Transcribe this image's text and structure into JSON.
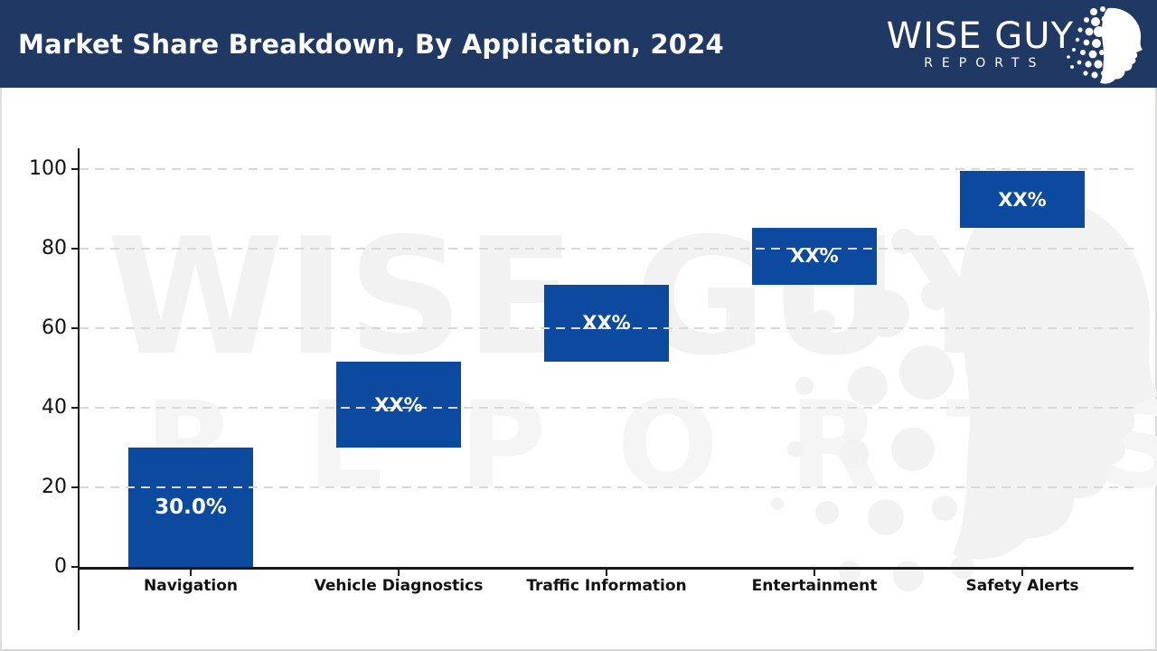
{
  "header": {
    "title": "Market Share Breakdown, By Application, 2024",
    "logo": {
      "line1": "WISE GUY",
      "line2": "REPORTS"
    }
  },
  "watermark": {
    "line1": "WISE GUY",
    "line2": "REPORTS"
  },
  "colors": {
    "header_bg": "#1f3864",
    "bar": "#0b4a9e",
    "axis": "#1a1a1a",
    "gridline": "#d9d9d9",
    "bar_label": "#ffffff",
    "watermark": "#f2f2f2"
  },
  "chart_data": {
    "type": "bar",
    "variant": "waterfall",
    "title": "Market Share Breakdown, By Application, 2024",
    "categories": [
      "Navigation",
      "Vehicle Diagnostics",
      "Traffic Information",
      "Entertainment",
      "Safety Alerts"
    ],
    "segments": [
      {
        "start": 0,
        "end": 30,
        "label": "30.0%"
      },
      {
        "start": 30,
        "end": 51.6,
        "label": "XX%"
      },
      {
        "start": 51.6,
        "end": 71,
        "label": "XX%"
      },
      {
        "start": 71,
        "end": 85.2,
        "label": "XX%"
      },
      {
        "start": 85.2,
        "end": 99.5,
        "label": "XX%"
      }
    ],
    "y_ticks": [
      0,
      20,
      40,
      60,
      80,
      100
    ],
    "ylim": [
      0,
      105
    ],
    "xlabel": "",
    "ylabel": "",
    "grid": "horizontal-dashed",
    "legend": "none"
  }
}
